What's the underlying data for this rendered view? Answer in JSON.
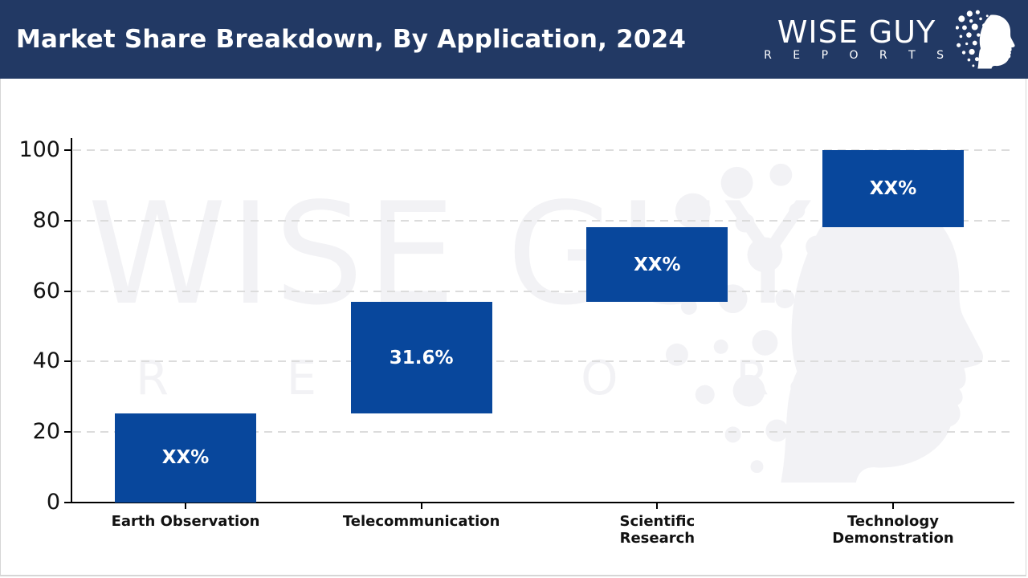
{
  "header": {
    "title": "Market Share Breakdown, By Application, 2024",
    "brand": {
      "name": "WISE GUY",
      "reports": "R E P O R T S"
    }
  },
  "watermark": {
    "brand": "WISE GUY",
    "reports": "R E P O R T S"
  },
  "colors": {
    "header_bg": "#223964",
    "bar": "#08479c",
    "bar_label": "#ffffff",
    "grid": "#dcdcdc",
    "axis": "#000000",
    "text": "#111111",
    "watermark": "#f2f2f5",
    "panel_bg": "#ffffff"
  },
  "chart_data": {
    "type": "bar",
    "subtype": "floating-cumulative-share",
    "title": "Market Share Breakdown, By Application, 2024",
    "categories": [
      "Earth Observation",
      "Telecommunication",
      "Scientific Research",
      "Technology Demonstration"
    ],
    "category_lines": [
      [
        "Earth Observation"
      ],
      [
        "Telecommunication"
      ],
      [
        "Scientific",
        "Research"
      ],
      [
        "Technology",
        "Demonstration"
      ]
    ],
    "segments": [
      {
        "category": "Earth Observation",
        "label": "XX%",
        "start": 0,
        "end": 25.3
      },
      {
        "category": "Telecommunication",
        "label": "31.6%",
        "start": 25.3,
        "end": 56.9
      },
      {
        "category": "Scientific Research",
        "label": "XX%",
        "start": 56.9,
        "end": 78.1
      },
      {
        "category": "Technology Demonstration",
        "label": "XX%",
        "start": 78.1,
        "end": 100
      }
    ],
    "xlabel": "",
    "ylabel": "",
    "ylim": [
      0,
      100
    ],
    "yticks": [
      0,
      20,
      40,
      60,
      80,
      100
    ],
    "grid": "horizontal dashed",
    "legend": "none"
  }
}
